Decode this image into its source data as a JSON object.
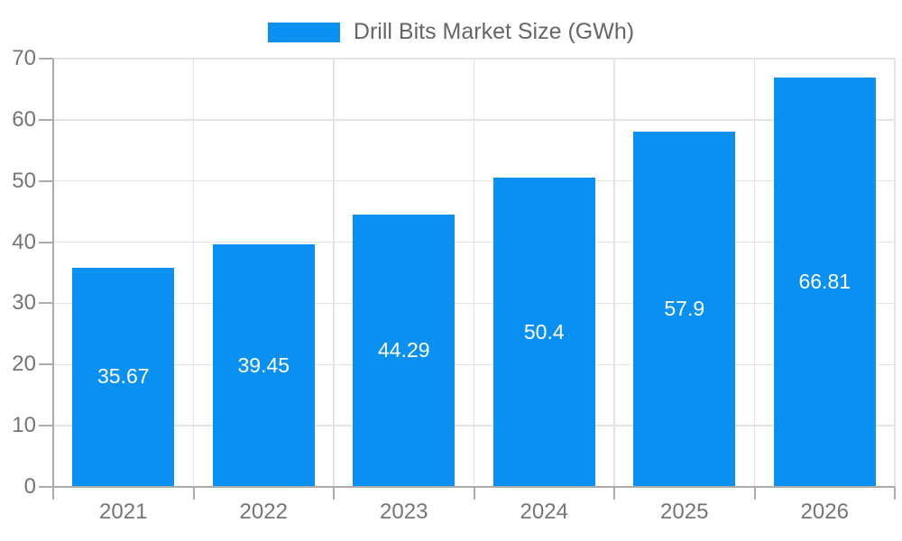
{
  "chart_data": {
    "type": "bar",
    "title": "Drill Bits Market Size (GWh)",
    "categories": [
      "2021",
      "2022",
      "2023",
      "2024",
      "2025",
      "2026"
    ],
    "values": [
      35.67,
      39.45,
      44.29,
      50.4,
      57.9,
      66.81
    ],
    "value_labels": [
      "35.67",
      "39.45",
      "44.29",
      "50.4",
      "57.9",
      "66.81"
    ],
    "xlabel": "",
    "ylabel": "",
    "ylim": [
      0,
      70
    ],
    "ytick_interval": 10,
    "yticks": [
      0,
      10,
      20,
      30,
      40,
      50,
      60,
      70
    ],
    "grid": true,
    "legend": {
      "label": "Drill Bits Market Size (GWh)",
      "position": "top-center"
    }
  },
  "colors": {
    "bar": "#0a90f1",
    "grid": "#e4e4e4",
    "axis": "#ababab",
    "tick_label": "#757575",
    "legend_text": "#666666",
    "bar_label": "#ffffff",
    "background": "#ffffff"
  }
}
